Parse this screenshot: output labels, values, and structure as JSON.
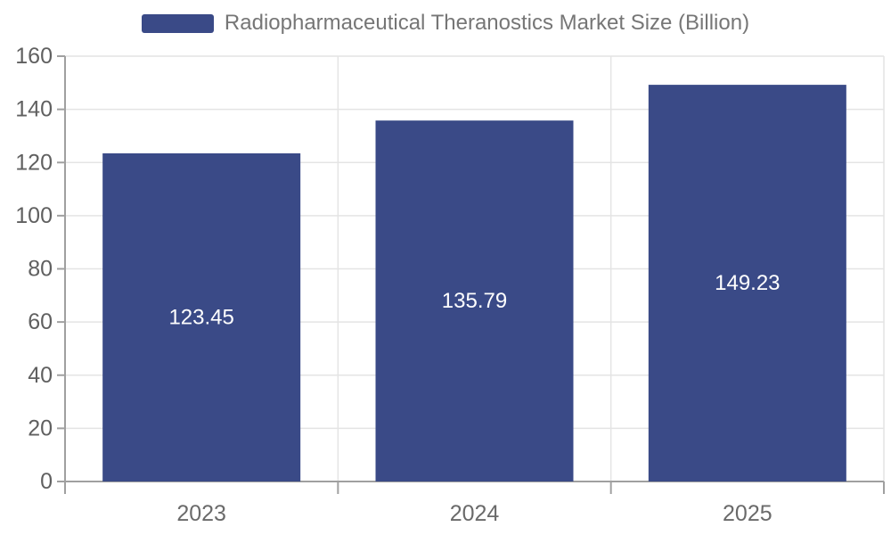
{
  "chart_data": {
    "type": "bar",
    "title": "Radiopharmaceutical Theranostics Market Size (Billion)",
    "categories": [
      "2023",
      "2024",
      "2025"
    ],
    "values": [
      123.45,
      135.79,
      149.23
    ],
    "value_labels": [
      "123.45",
      "135.79",
      "149.23"
    ],
    "xlabel": "",
    "ylabel": "",
    "ylim": [
      0,
      160
    ],
    "yticks": [
      0,
      20,
      40,
      60,
      80,
      100,
      120,
      140,
      160
    ],
    "grid": true,
    "legend_position": "top-center",
    "value_label_position": "center-of-bar"
  },
  "legend": {
    "label": "Radiopharmaceutical Theranostics Market Size (Billion)",
    "swatch_color": "#3a4a87"
  },
  "colors": {
    "bar": "#3a4a87",
    "grid": "#e4e4e4",
    "axis": "#a0a0a0",
    "tick_label": "#606060",
    "xtick_label": "#6a6a6a",
    "legend_text": "#767676",
    "data_label": "#ffffff",
    "background": "#ffffff"
  }
}
